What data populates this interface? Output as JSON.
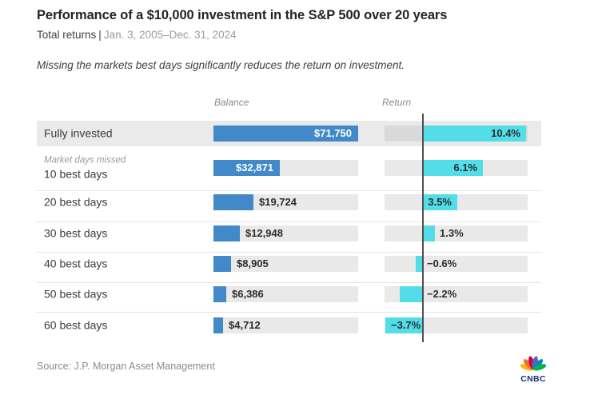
{
  "header": {
    "title": "Performance of a $10,000 investment in the S&P 500 over 20 years",
    "subtitle_label": "Total returns",
    "subtitle_separator": "|",
    "subtitle_date": "Jan. 3, 2005–Dec. 31, 2024",
    "note": "Missing the markets best days significantly reduces the return on investment."
  },
  "columns": {
    "balance": "Balance",
    "return": "Return"
  },
  "rows": [
    {
      "label": "Fully invested",
      "balance": "$71,750",
      "return": "10.4%"
    },
    {
      "sublabel": "Market days missed",
      "label": "10 best days",
      "balance": "$32,871",
      "return": "6.1%"
    },
    {
      "label": "20 best days",
      "balance": "$19,724",
      "return": "3.5%"
    },
    {
      "label": "30 best days",
      "balance": "$12,948",
      "return": "1.3%"
    },
    {
      "label": "40 best days",
      "balance": "$8,905",
      "return": "−0.6%"
    },
    {
      "label": "50 best days",
      "balance": "$6,386",
      "return": "−2.2%"
    },
    {
      "label": "60 best days",
      "balance": "$4,712",
      "return": "−3.7%"
    }
  ],
  "chart_data": {
    "type": "bar",
    "orientation": "horizontal",
    "title": "Performance of a $10,000 investment in the S&P 500 over 20 years",
    "subtitle": "Total returns | Jan. 3, 2005–Dec. 31, 2024",
    "annotation": "Missing the markets best days significantly reduces the return on investment.",
    "group_label": "Market days missed",
    "categories": [
      "Fully invested",
      "10 best days",
      "20 best days",
      "30 best days",
      "40 best days",
      "50 best days",
      "60 best days"
    ],
    "series": [
      {
        "name": "Balance",
        "values": [
          71750,
          32871,
          19724,
          12948,
          8905,
          6386,
          4712
        ],
        "labels": [
          "$71,750",
          "$32,871",
          "$19,724",
          "$12,948",
          "$8,905",
          "$6,386",
          "$4,712"
        ]
      },
      {
        "name": "Return",
        "values": [
          10.4,
          6.1,
          3.5,
          1.3,
          -0.6,
          -2.2,
          -3.7
        ],
        "labels": [
          "10.4%",
          "6.1%",
          "3.5%",
          "1.3%",
          "−0.6%",
          "−2.2%",
          "−3.7%"
        ]
      }
    ],
    "balance_axis_max": 71750,
    "return_axis_range": [
      -3.8,
      10.6
    ],
    "legend": false,
    "gridlines": false
  },
  "footer": {
    "source": "Source: J.P. Morgan Asset Management",
    "logo_label": "CNBC"
  },
  "colors": {
    "balance_bar": "#4189c9",
    "return_bar": "#52dde8",
    "row_highlight": "#eaeaea",
    "track": "#e9e9e9",
    "track_on_highlight": "#d9d9d9",
    "zero_line": "#4f4f4f",
    "cnbc_peacock": [
      "#FCB711",
      "#F37021",
      "#CC004C",
      "#6460AA",
      "#0089D0",
      "#0DB14B"
    ],
    "cnbc_wordmark": "#1b2d7d"
  }
}
